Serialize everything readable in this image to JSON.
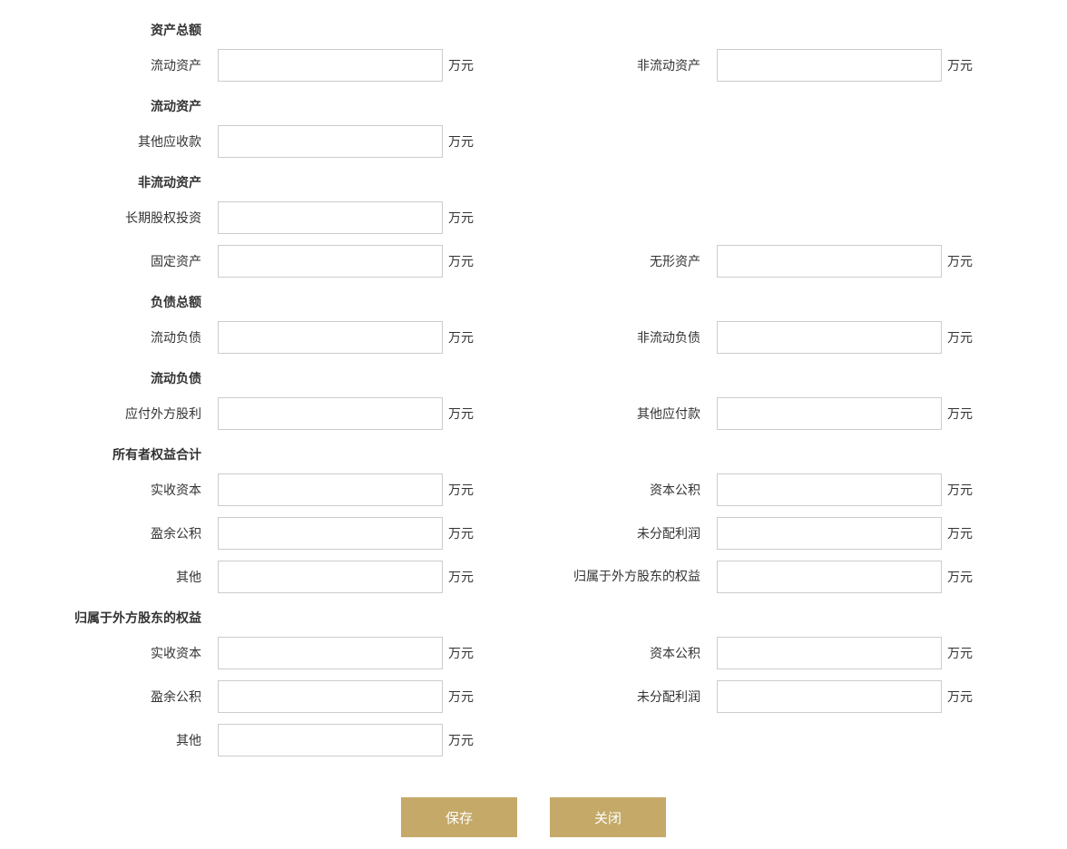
{
  "unit": "万元",
  "colors": {
    "button_bg": "#c4a968",
    "button_text": "#ffffff",
    "input_border": "#cccccc",
    "text": "#333333",
    "background": "#ffffff"
  },
  "sections": {
    "total_assets": {
      "header": "资产总额",
      "fields": {
        "current_assets": {
          "label": "流动资产",
          "value": ""
        },
        "non_current_assets": {
          "label": "非流动资产",
          "value": ""
        }
      }
    },
    "current_assets": {
      "header": "流动资产",
      "fields": {
        "other_receivables": {
          "label": "其他应收款",
          "value": ""
        }
      }
    },
    "non_current_assets": {
      "header": "非流动资产",
      "fields": {
        "long_term_equity": {
          "label": "长期股权投资",
          "value": ""
        },
        "fixed_assets": {
          "label": "固定资产",
          "value": ""
        },
        "intangible_assets": {
          "label": "无形资产",
          "value": ""
        }
      }
    },
    "total_liabilities": {
      "header": "负债总额",
      "fields": {
        "current_liabilities": {
          "label": "流动负债",
          "value": ""
        },
        "non_current_liabilities": {
          "label": "非流动负债",
          "value": ""
        }
      }
    },
    "current_liabilities": {
      "header": "流动负债",
      "fields": {
        "foreign_dividends_payable": {
          "label": "应付外方股利",
          "value": ""
        },
        "other_payables": {
          "label": "其他应付款",
          "value": ""
        }
      }
    },
    "owner_equity": {
      "header": "所有者权益合计",
      "fields": {
        "paid_in_capital": {
          "label": "实收资本",
          "value": ""
        },
        "capital_reserve": {
          "label": "资本公积",
          "value": ""
        },
        "surplus_reserve": {
          "label": "盈余公积",
          "value": ""
        },
        "undistributed_profit": {
          "label": "未分配利润",
          "value": ""
        },
        "other": {
          "label": "其他",
          "value": ""
        },
        "foreign_shareholder_equity": {
          "label": "归属于外方股东的权益",
          "value": ""
        }
      }
    },
    "foreign_shareholder_equity": {
      "header": "归属于外方股东的权益",
      "fields": {
        "paid_in_capital": {
          "label": "实收资本",
          "value": ""
        },
        "capital_reserve": {
          "label": "资本公积",
          "value": ""
        },
        "surplus_reserve": {
          "label": "盈余公积",
          "value": ""
        },
        "undistributed_profit": {
          "label": "未分配利润",
          "value": ""
        },
        "other": {
          "label": "其他",
          "value": ""
        }
      }
    }
  },
  "buttons": {
    "save": "保存",
    "close": "关闭"
  }
}
